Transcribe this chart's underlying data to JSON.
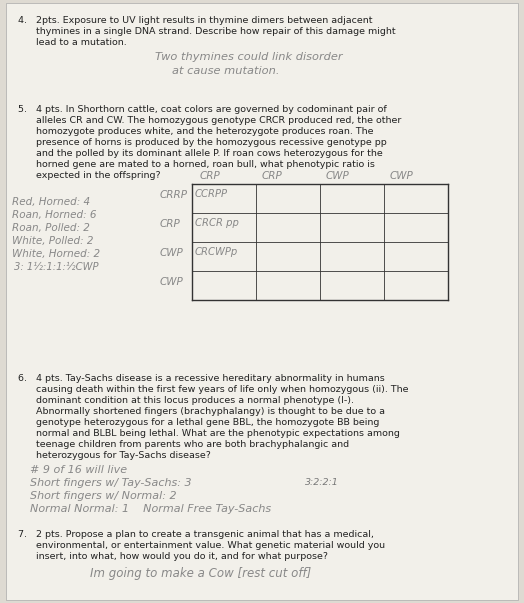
{
  "bg_color": "#dedad2",
  "paper_color": "#f2f0ea",
  "text_color": "#222222",
  "figsize": [
    5.24,
    6.03
  ],
  "dpi": 100,
  "q4_line1": "4.   2pts. Exposure to UV light results in thymine dimers between adjacent",
  "q4_line2": "      thymines in a single DNA strand. Describe how repair of this damage might",
  "q4_line3": "      lead to a mutation.",
  "q4_hw1": "Two thymines could link disorder",
  "q4_hw2": "at cause mutation.",
  "q5_line1": "5.   4 pts. In Shorthorn cattle, coat colors are governed by codominant pair of",
  "q5_line2": "      alleles CR and CW. The homozygous genotype CRCR produced red, the other",
  "q5_line3": "      homozygote produces white, and the heterozygote produces roan. The",
  "q5_line4": "      presence of horns is produced by the homozygous recessive genotype pp",
  "q5_line5": "      and the polled by its dominant allele P. If roan cows heterozygous for the",
  "q5_line6": "      horned gene are mated to a horned, roan bull, what phenotypic ratio is",
  "q5_line7": "      expected in the offspring?",
  "col_headers": [
    "CRP",
    "CRP",
    "CWP",
    "CWP"
  ],
  "row_headers": [
    "CRRP",
    "CRP",
    "CWP",
    "CWP"
  ],
  "cell_00": "CCRPP",
  "cell_10": "CRCR pp",
  "cell_20": "CRCWPp",
  "left_notes": [
    "Red, Horned: 4",
    "Roan, Horned: 6",
    "Roan, Polled: 2",
    "White, Polled: 2",
    "White, Horned: 2"
  ],
  "left_ratio": "3: 1½:1:1:½",
  "q6_line1": "6.   4 pts. Tay-Sachs disease is a recessive hereditary abnormality in humans",
  "q6_line2": "      causing death within the first few years of life only when homozygous (ii). The",
  "q6_line3": "      dominant condition at this locus produces a normal phenotype (I-).",
  "q6_line4": "      Abnormally shortened fingers (brachyphalangy) is thought to be due to a",
  "q6_line5": "      genotype heterozygous for a lethal gene BBL, the homozygote BB being",
  "q6_line6": "      normal and BLBL being lethal. What are the phenotypic expectations among",
  "q6_line7": "      teenage children from parents who are both brachyphalangic and",
  "q6_line8": "      heterozygous for Tay-Sachs disease?",
  "q6_hw1": "# 9 of 16 will live",
  "q6_hw2": "Short fingers w/ Tay-Sachs: 3",
  "q6_ratio": "3:2:2:1",
  "q6_hw3": "Short fingers w/ Normal: 2",
  "q6_hw4": "Normal Normal: 1    Normal Free Tay-Sachs",
  "q7_line1": "7.   2 pts. Propose a plan to create a transgenic animal that has a medical,",
  "q7_line2": "      environmental, or entertainment value. What genetic material would you",
  "q7_line3": "      insert, into what, how would you do it, and for what purpose?",
  "q7_hw1": "Im going to make a Cow [rest cut off]"
}
